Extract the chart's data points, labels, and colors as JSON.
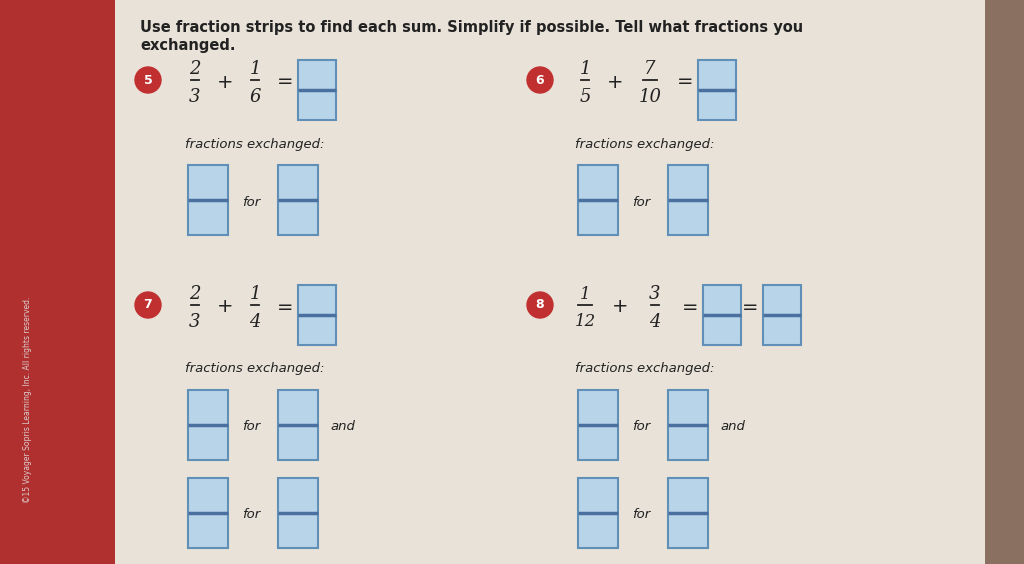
{
  "title_line1": "Use fraction strips to find each sum. Simplify if possible. Tell what fractions you",
  "title_line2": "exchanged.",
  "bg_color": "#d8d0c8",
  "paper_color": "#e8e2d8",
  "left_bar_color": "#b03030",
  "strip_fill": "#b8d4e8",
  "strip_edge": "#6090b8",
  "strip_line": "#4a70a0",
  "circle_color": "#c03030",
  "text_color": "#222222",
  "font_size_title": 10.5,
  "font_size_eq": 12,
  "font_size_label": 9.5,
  "font_size_circle": 9,
  "copyright": "©15 Voyager Sopris Learning, Inc. All rights reserved."
}
